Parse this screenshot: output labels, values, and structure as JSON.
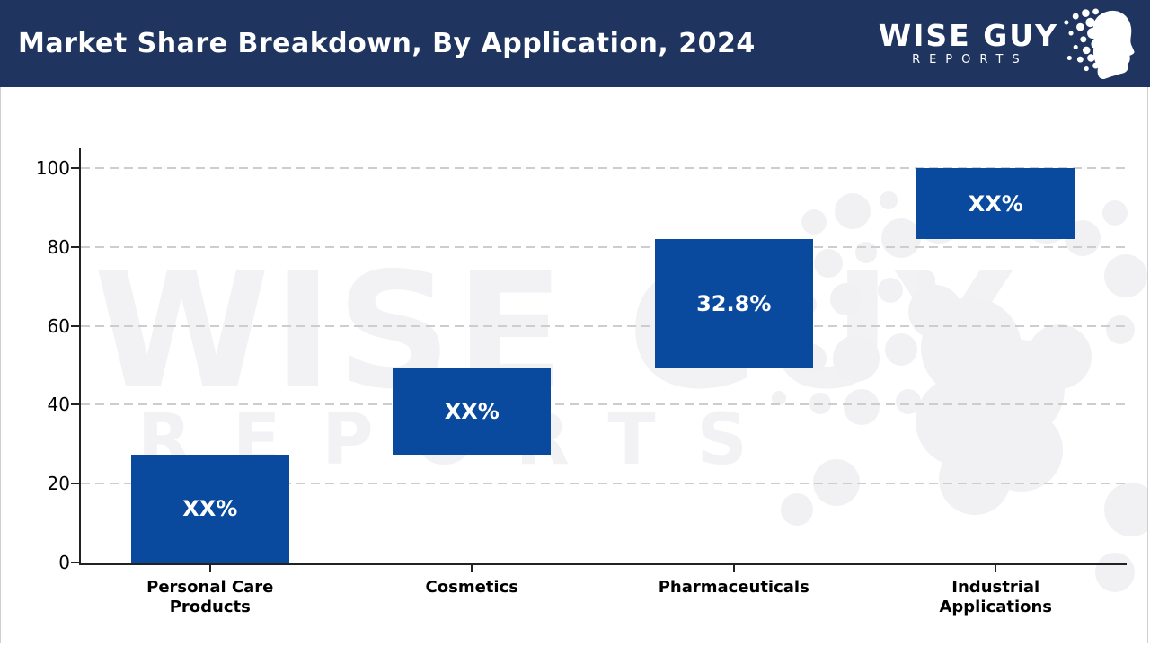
{
  "header": {
    "title": "Market Share Breakdown, By Application, 2024",
    "logo": {
      "name": "WISE GUY",
      "tagline": "REPORTS",
      "icon": "dotted-face-profile"
    }
  },
  "watermark": {
    "line1": "WISE GUY",
    "line2": "REPORTS",
    "icon": "dotted-face-profile"
  },
  "colors": {
    "header_bg": "#1f3560",
    "bar": "#0a4a9e",
    "grid": "#cdcdcd",
    "axis": "#222222",
    "bar_label": "#ffffff",
    "watermark": "#f2f2f4",
    "frame_border": "#cfcfcf"
  },
  "chart_data": {
    "type": "bar",
    "subtype": "floating-segment-bar",
    "title": "Market Share Breakdown, By Application, 2024",
    "categories": [
      "Personal Care Products",
      "Cosmetics",
      "Pharmaceuticals",
      "Industrial Applications"
    ],
    "category_display": [
      "Personal Care\nProducts",
      "Cosmetics",
      "Pharmaceuticals",
      "Industrial\nApplications"
    ],
    "bars": [
      {
        "category": "Personal Care Products",
        "start": 0,
        "end": 27.3,
        "label": "XX%"
      },
      {
        "category": "Cosmetics",
        "start": 27.4,
        "end": 49.2,
        "label": "XX%"
      },
      {
        "category": "Pharmaceuticals",
        "start": 49.2,
        "end": 82,
        "label": "32.8%",
        "value": 32.8
      },
      {
        "category": "Industrial Applications",
        "start": 82,
        "end": 100,
        "label": "XX%"
      }
    ],
    "ylim": [
      0,
      100
    ],
    "yticks": [
      0,
      20,
      40,
      60,
      80,
      100
    ],
    "ytick_labels": [
      "0",
      "20",
      "40",
      "60",
      "80",
      "100"
    ],
    "grid": "horizontal-dashed",
    "legend": "none",
    "xlabel": "",
    "ylabel": "",
    "bar_color": "#0a4a9e"
  }
}
